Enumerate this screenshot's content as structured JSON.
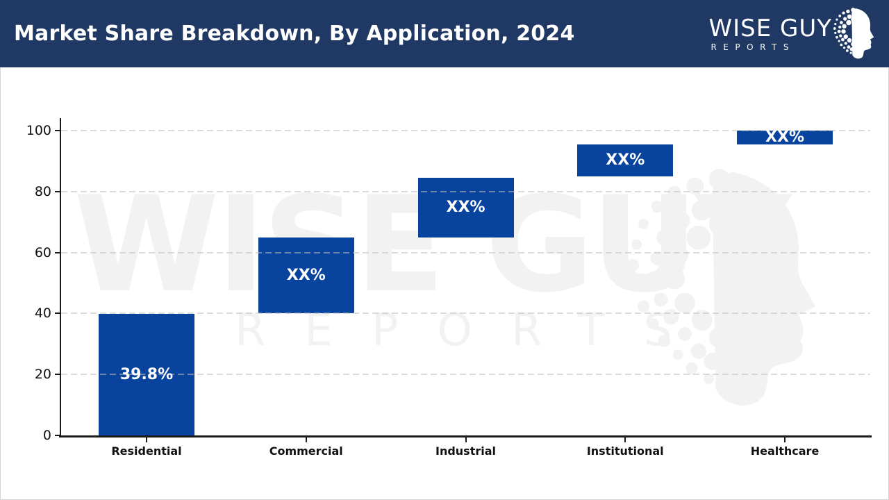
{
  "header": {
    "title": "Market Share Breakdown, By Application, 2024",
    "bg_color": "#1f3864",
    "logo": {
      "line1": "WISE GUY",
      "line2": "REPORTS"
    }
  },
  "watermark": {
    "line1": "WISE GUY",
    "line2": "REPORTS"
  },
  "chart_data": {
    "type": "bar",
    "subtype": "waterfall",
    "title": "Market Share Breakdown, By Application, 2024",
    "categories": [
      "Residential",
      "Commercial",
      "Industrial",
      "Institutional",
      "Healthcare"
    ],
    "segments": [
      {
        "category": "Residential",
        "start": 0,
        "end": 39.8,
        "label": "39.8%"
      },
      {
        "category": "Commercial",
        "start": 40,
        "end": 65,
        "label": "XX%"
      },
      {
        "category": "Industrial",
        "start": 65,
        "end": 84.5,
        "label": "XX%"
      },
      {
        "category": "Institutional",
        "start": 85,
        "end": 95.5,
        "label": "XX%"
      },
      {
        "category": "Healthcare",
        "start": 95.5,
        "end": 100,
        "label": "XX%"
      }
    ],
    "yticks": [
      0,
      20,
      40,
      60,
      80,
      100
    ],
    "ylim": [
      0,
      104
    ],
    "xlabel": "",
    "ylabel": "",
    "legend": "none",
    "grid": "horizontal-dashed",
    "bar_color": "#08439d",
    "label_color": "#ffffff",
    "watermark_color": "#f2f2f2"
  }
}
